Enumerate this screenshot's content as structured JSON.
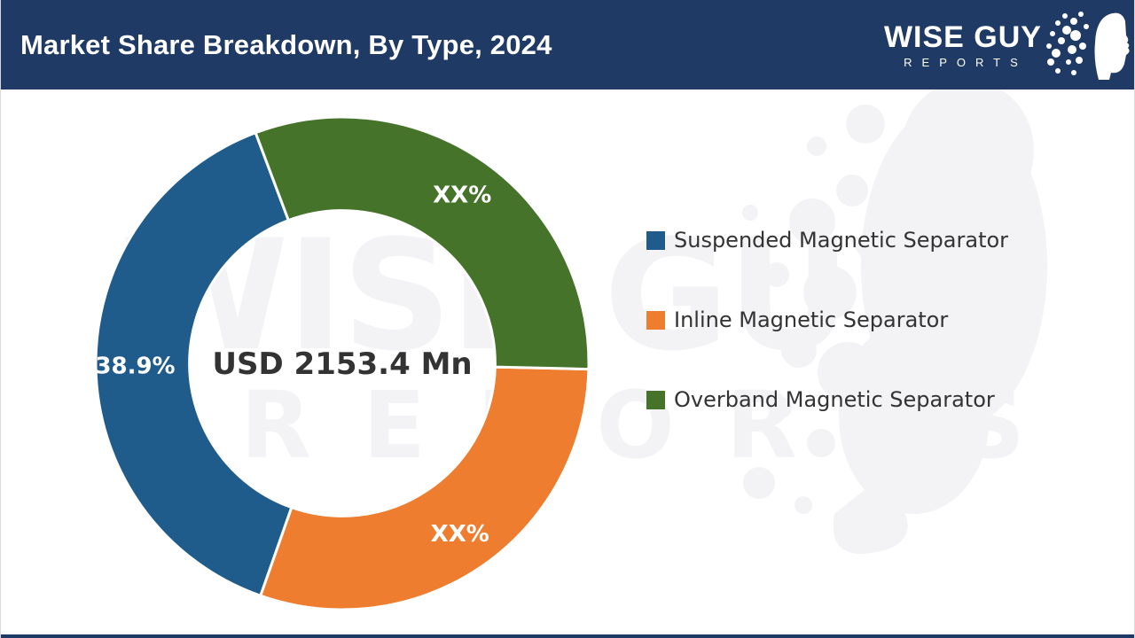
{
  "header": {
    "title": "Market Share Breakdown, By Type, 2024",
    "bg_color": "#203a66",
    "logo": {
      "line1": "WISE GUY",
      "line2": "REPORTS"
    }
  },
  "chart_data": {
    "type": "pie",
    "subtype": "donut",
    "title": "Market Share Breakdown, By Type, 2024",
    "center_label": "USD 2153.4 Mn",
    "start_angle_deg": 110.6,
    "direction": "counterclockwise",
    "outer_radius_px": 278,
    "inner_radius_ratio": 0.62,
    "label_radius_ratio": 0.84,
    "legend_position": "right",
    "segments": [
      {
        "label": "Suspended Magnetic Separator",
        "value_pct": 38.9,
        "display_label": "38.9%",
        "color": "#1f5c8b"
      },
      {
        "label": "Inline Magnetic Separator",
        "value_pct": 30.0,
        "display_label": "XX%",
        "color": "#ee7d30"
      },
      {
        "label": "Overband Magnetic Separator",
        "value_pct": 31.1,
        "display_label": "XX%",
        "color": "#46732a"
      }
    ]
  },
  "watermark": {
    "line1": "WISE GUY",
    "line2": "REPORTS"
  }
}
